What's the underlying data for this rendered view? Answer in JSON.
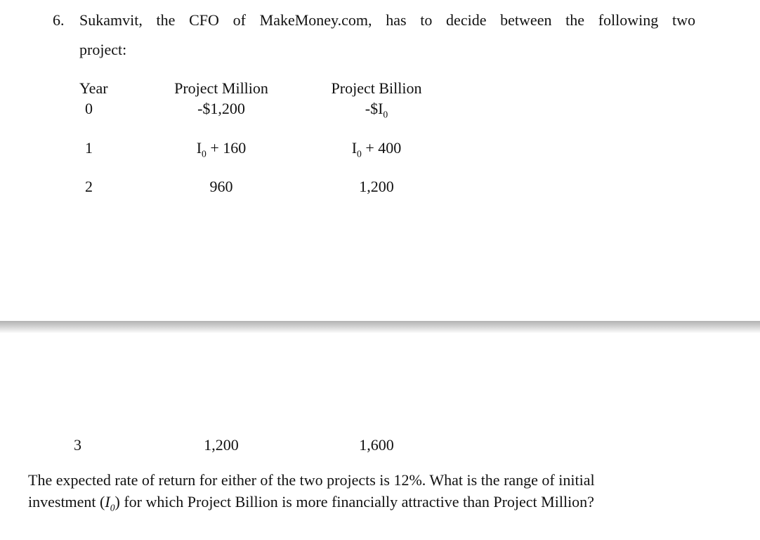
{
  "question": {
    "number": "6.",
    "line1": "Sukamvit, the CFO of MakeMoney.com, has to decide between the following two",
    "line2": "project:"
  },
  "table": {
    "headers": {
      "year": "Year",
      "million": "Project Million",
      "billion": "Project Billion"
    },
    "rows": [
      {
        "year": "0",
        "million": {
          "pre": "-$1,200",
          "sub": "",
          "post": ""
        },
        "billion": {
          "pre": "-$I",
          "sub": "0",
          "post": ""
        }
      },
      {
        "year": "1",
        "million": {
          "pre": "I",
          "sub": "0",
          "post": " + 160"
        },
        "billion": {
          "pre": "I",
          "sub": "0",
          "post": " + 400"
        }
      },
      {
        "year": "2",
        "million": {
          "pre": "960",
          "sub": "",
          "post": ""
        },
        "billion": {
          "pre": "1,200",
          "sub": "",
          "post": ""
        }
      },
      {
        "year": "3",
        "million": {
          "pre": "1,200",
          "sub": "",
          "post": ""
        },
        "billion": {
          "pre": "1,600",
          "sub": "",
          "post": ""
        }
      }
    ]
  },
  "closing": {
    "line1": "The expected rate of return for either of the two projects is 12%. What is the range of initial",
    "line2_pre": "investment (",
    "line2_var": "I",
    "line2_var_sub": "0",
    "line2_post": ") for which Project Billion is more financially attractive than Project Million?"
  },
  "colors": {
    "page_background": "#ffffff",
    "text": "#111111",
    "divider_top": "#b2b2b2",
    "divider_bottom": "#fbfbfb"
  }
}
